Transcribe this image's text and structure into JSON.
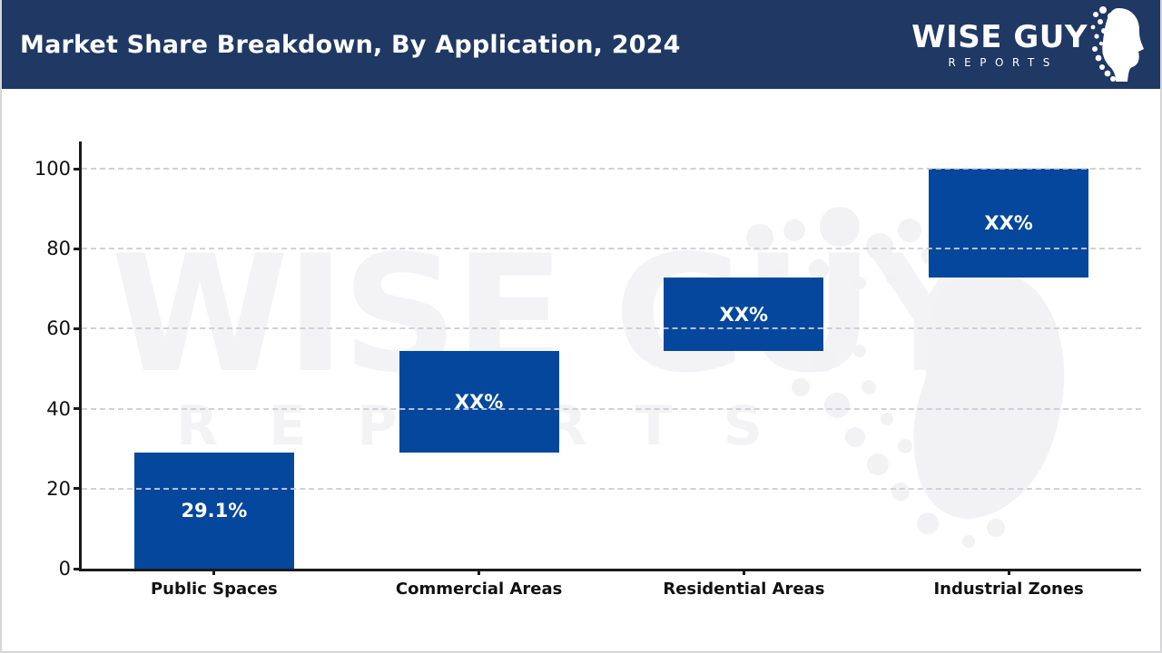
{
  "header": {
    "title": "Market Share Breakdown, By Application, 2024",
    "logo": {
      "name": "WISE GUY",
      "subtitle": "REPORTS"
    }
  },
  "watermark": {
    "line1": "WISE GUY",
    "line2": "REPORTS"
  },
  "chart_data": {
    "type": "bar",
    "subtype": "waterfall",
    "title": "Market Share Breakdown, By Application, 2024",
    "categories": [
      "Public Spaces",
      "Commercial Areas",
      "Residential Areas",
      "Industrial Zones"
    ],
    "segments": [
      {
        "category": "Public Spaces",
        "start": 0,
        "end": 29.1,
        "label": "29.1%"
      },
      {
        "category": "Commercial Areas",
        "start": 29.1,
        "end": 54.4,
        "label": "XX%"
      },
      {
        "category": "Residential Areas",
        "start": 54.4,
        "end": 72.8,
        "label": "XX%"
      },
      {
        "category": "Industrial Zones",
        "start": 72.8,
        "end": 100,
        "label": "XX%"
      }
    ],
    "yticks": [
      0,
      20,
      40,
      60,
      80,
      100
    ],
    "ylim": [
      0,
      107
    ],
    "xlabel": "",
    "ylabel": "",
    "grid": "horizontal-dashed",
    "legend": "none",
    "bar_color": "#04479c",
    "bar_label_color": "#ffffff"
  },
  "colors": {
    "header_bg": "#1f3864",
    "bar": "#04479c",
    "axis": "#1a1a1a",
    "grid": "#cbcdd3",
    "watermark": "#f3f3f5"
  }
}
